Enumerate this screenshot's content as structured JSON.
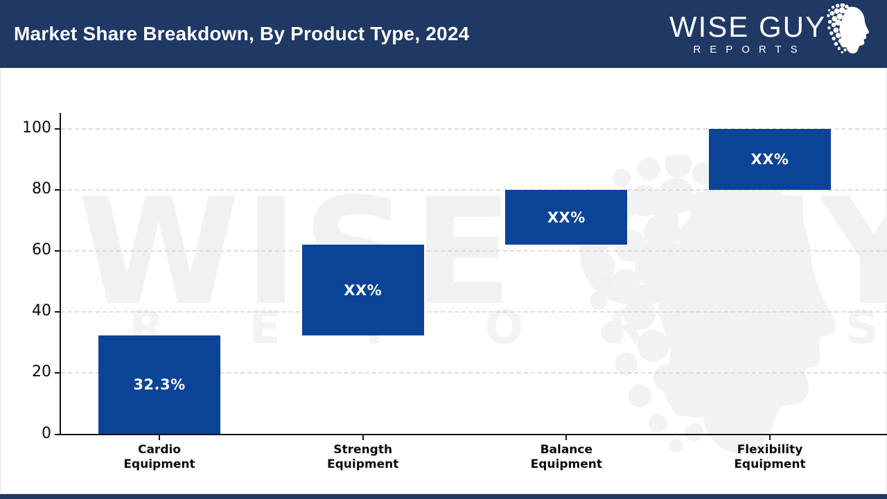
{
  "header": {
    "title": "Market Share Breakdown, By Product Type, 2024",
    "bg_color": "#1f3864",
    "logo": {
      "line1": "WISE GUY",
      "line2": "REPORTS"
    }
  },
  "watermark": {
    "line1": "WISE GUY",
    "line2": "R E P O R T S"
  },
  "chart_data": {
    "type": "bar",
    "subtype": "waterfall",
    "title": "Market Share Breakdown, By Product Type, 2024",
    "categories": [
      "Cardio Equipment",
      "Strength Equipment",
      "Balance Equipment",
      "Flexibility Equipment"
    ],
    "segments": [
      {
        "category": "Cardio Equipment",
        "start": 0,
        "end": 32.3,
        "label": "32.3%"
      },
      {
        "category": "Strength Equipment",
        "start": 32.3,
        "end": 62,
        "label": "XX%"
      },
      {
        "category": "Balance Equipment",
        "start": 62,
        "end": 80,
        "label": "XX%"
      },
      {
        "category": "Flexibility Equipment",
        "start": 80,
        "end": 100,
        "label": "XX%"
      }
    ],
    "yticks": [
      0,
      20,
      40,
      60,
      80,
      100
    ],
    "ylim": [
      0,
      100
    ],
    "xlabel": "",
    "ylabel": "",
    "bar_color": "#0b4397",
    "grid": "horizontal-dashed",
    "legend": "none"
  }
}
